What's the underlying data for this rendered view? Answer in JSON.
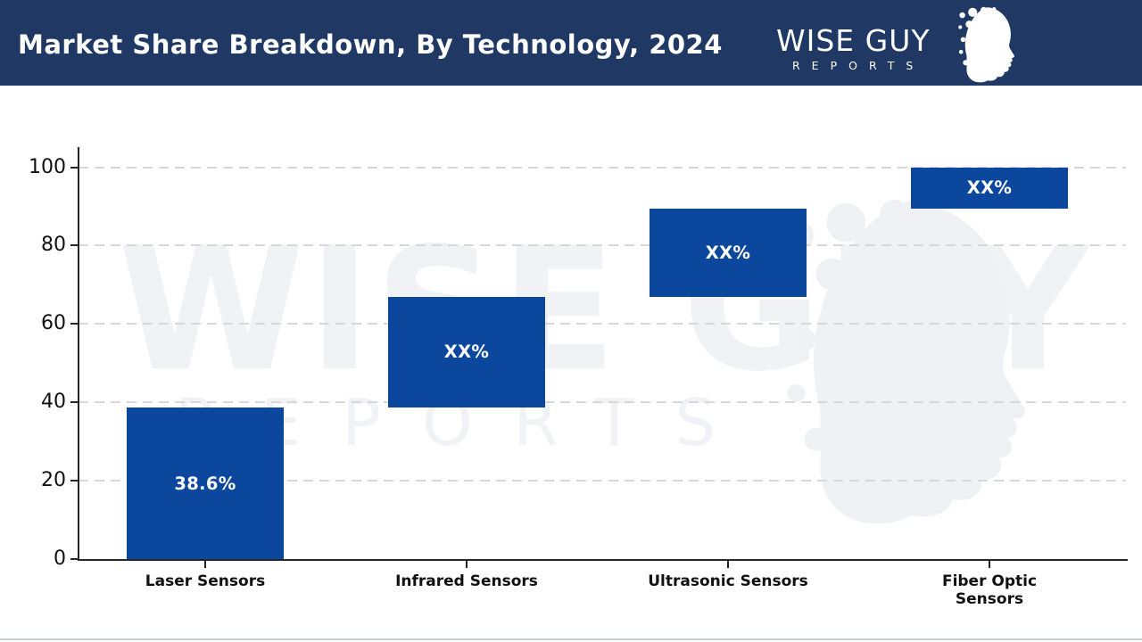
{
  "header": {
    "title": "Market Share Breakdown, By Technology, 2024",
    "brand": {
      "line1": "WISE GUY",
      "line2": "REPORTS"
    },
    "bg_color": "#1f3864"
  },
  "watermark": {
    "line1": "WISE GUY",
    "line2": "REPORTS"
  },
  "chart_data": {
    "type": "bar",
    "subtype": "waterfall",
    "title": "Market Share Breakdown, By Technology, 2024",
    "categories": [
      "Laser Sensors",
      "Infrared Sensors",
      "Ultrasonic Sensors",
      "Fiber Optic Sensors"
    ],
    "segments": [
      {
        "category": "Laser Sensors",
        "start": 0,
        "end": 38.6,
        "label": "38.6%"
      },
      {
        "category": "Infrared Sensors",
        "start": 38.6,
        "end": 67.0,
        "label": "XX%"
      },
      {
        "category": "Ultrasonic Sensors",
        "start": 67.0,
        "end": 89.4,
        "label": "XX%"
      },
      {
        "category": "Fiber Optic Sensors",
        "start": 89.4,
        "end": 100,
        "label": "XX%"
      }
    ],
    "y_ticks": [
      0,
      20,
      40,
      60,
      80,
      100
    ],
    "ylim": [
      0,
      100
    ],
    "xlabel": "",
    "ylabel": "",
    "legend": "none",
    "grid": "horizontal-dashed",
    "bar_color": "#0c479e",
    "grid_color": "#d8d8d8",
    "axis_color": "#262626"
  }
}
